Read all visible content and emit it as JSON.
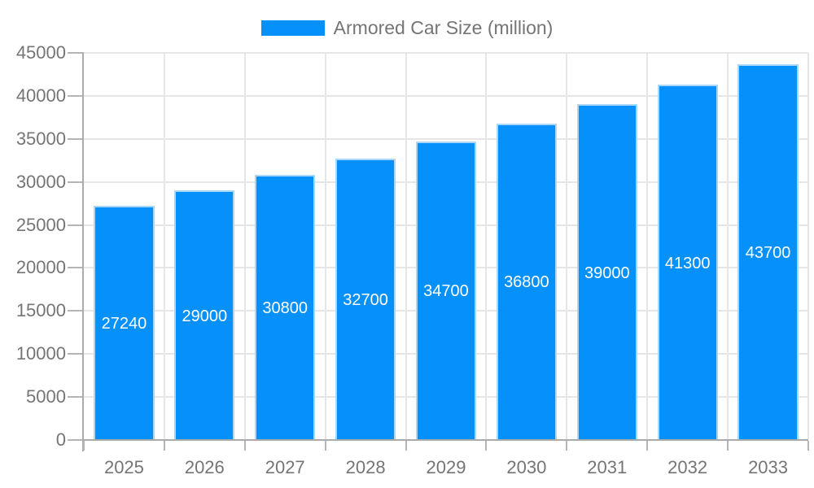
{
  "chart_data": {
    "type": "bar",
    "title": "",
    "xlabel": "",
    "ylabel": "",
    "legend_position": "top",
    "grid": true,
    "categories": [
      "2025",
      "2026",
      "2027",
      "2028",
      "2029",
      "2030",
      "2031",
      "2032",
      "2033"
    ],
    "series": [
      {
        "name": "Armored Car Size (million)",
        "values": [
          27240,
          29000,
          30800,
          32700,
          34700,
          36800,
          39000,
          41300,
          43700
        ]
      }
    ],
    "data_labels_shown": true,
    "ylim": [
      0,
      45000
    ],
    "yticks": [
      0,
      5000,
      10000,
      15000,
      20000,
      25000,
      30000,
      35000,
      40000,
      45000
    ],
    "colors": {
      "bar_fill": "#0590FA",
      "bar_border": "#A9D7FB",
      "data_label_text": "#FFFFFF",
      "axis_text": "#757575",
      "gridline": "#E6E6E6",
      "axis_line": "#ABABAB",
      "tick": "#B5B5B5",
      "background": "#FFFFFF"
    }
  }
}
